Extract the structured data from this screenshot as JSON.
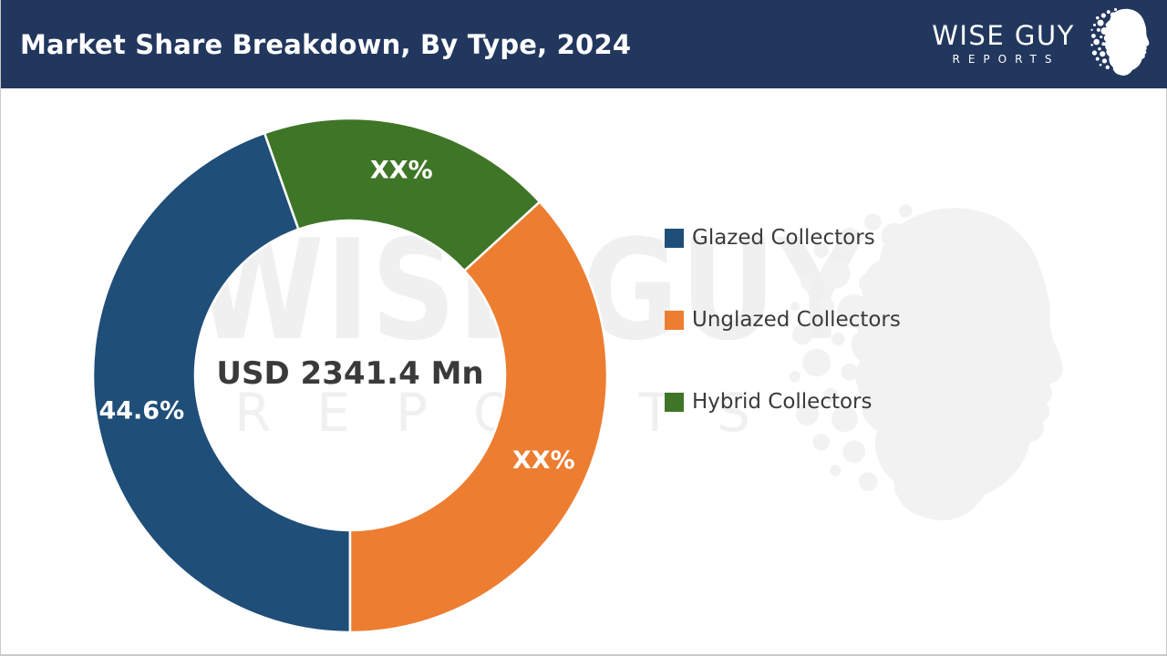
{
  "header": {
    "title": "Market Share Breakdown, By Type, 2024",
    "logo": {
      "line1": "WISE GUY",
      "line2": "REPORTS"
    }
  },
  "watermark": {
    "line1": "WISE GUY",
    "line2": "REPORTS"
  },
  "colors": {
    "header_bg": "#22375e",
    "blue": "#1f4e78",
    "orange": "#ed7d31",
    "green": "#3f7527",
    "text_dark": "#3a3a3a",
    "watermark_gray": "#f0f0f0",
    "watermark_face_gray": "#f2f2f2"
  },
  "chart_data": {
    "type": "pie",
    "subtype": "donut",
    "title": "Market Share Breakdown, By Type, 2024",
    "center_text": "USD 2341.4 Mn",
    "start_angle_clockwise_from_top_deg": 180,
    "label_radius": 232,
    "outer_radius": 282,
    "inner_radius": 170,
    "segments": [
      {
        "name": "Glazed Collectors",
        "value_pct": 44.6,
        "label": "44.6%",
        "color": "#1f4e78"
      },
      {
        "name": "Hybrid Collectors",
        "value_pct": 18.6,
        "label": "XX%",
        "color": "#3f7527"
      },
      {
        "name": "Unglazed Collectors",
        "value_pct": 36.8,
        "label": "XX%",
        "color": "#ed7d31"
      }
    ],
    "legend_position": "right"
  },
  "legend": {
    "items": [
      {
        "label": "Glazed Collectors",
        "color": "#1f4e78"
      },
      {
        "label": "Unglazed Collectors",
        "color": "#ed7d31"
      },
      {
        "label": "Hybrid Collectors",
        "color": "#3f7527"
      }
    ]
  }
}
